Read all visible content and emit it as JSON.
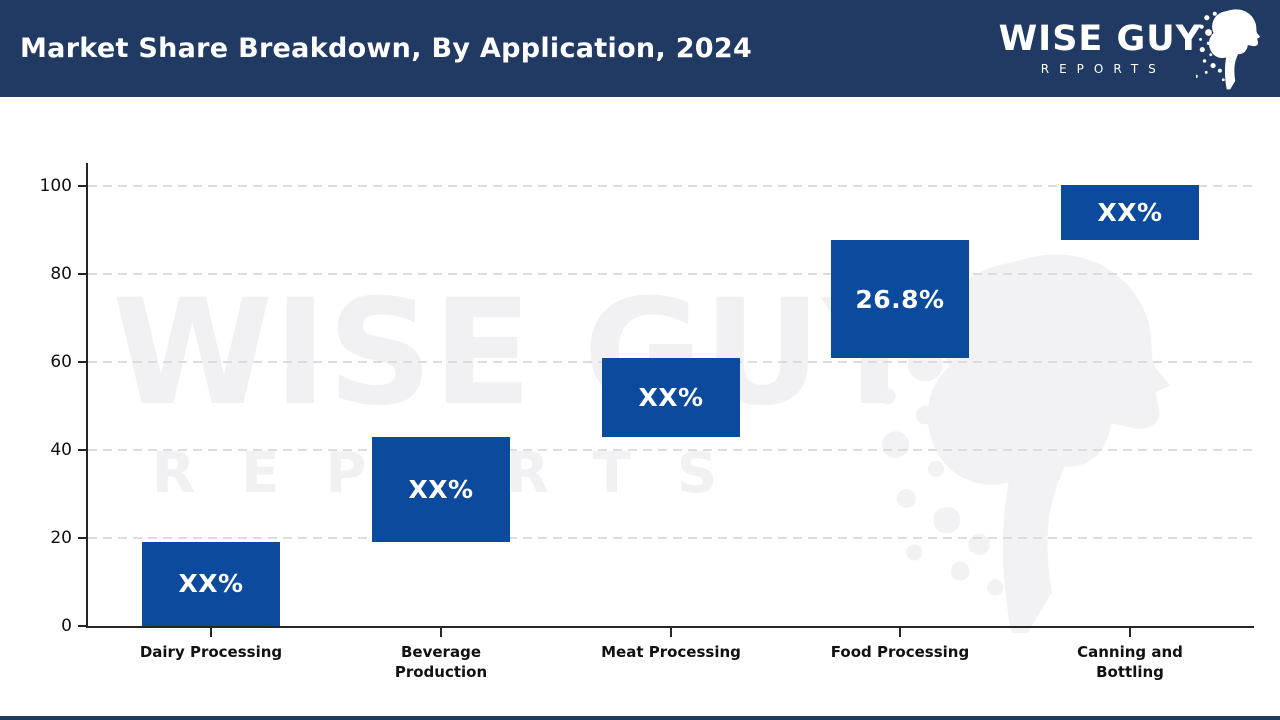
{
  "header": {
    "title": "Market Share Breakdown, By Application, 2024",
    "brand": {
      "line1": "WISE GUY",
      "line2": "REPORTS"
    }
  },
  "watermark": {
    "line1": "WISE GUY",
    "line2": "REPORTS"
  },
  "colors": {
    "header_bg": "#203a64",
    "footer_bg": "#203a64",
    "bar": "#0c4a9e",
    "bar_label": "#ffffff",
    "axis": "#262626",
    "grid": "#dcdcdc",
    "watermark": "#f1f1f3"
  },
  "chart_data": {
    "type": "bar",
    "subtype": "floating-waterfall",
    "title": "Market Share Breakdown, By Application, 2024",
    "categories": [
      "Dairy Processing",
      "Beverage Production",
      "Meat Processing",
      "Food Processing",
      "Canning and Bottling"
    ],
    "series": [
      {
        "name": "Market Share (%)",
        "segments": [
          {
            "category": "Dairy Processing",
            "lines": [
              "Dairy Processing"
            ],
            "start": 0,
            "end": 19.1,
            "value": 19.1,
            "label": "XX%"
          },
          {
            "category": "Beverage Production",
            "lines": [
              "Beverage",
              "Production"
            ],
            "start": 19.1,
            "end": 43.0,
            "value": 23.9,
            "label": "XX%"
          },
          {
            "category": "Meat Processing",
            "lines": [
              "Meat Processing"
            ],
            "start": 43.0,
            "end": 60.9,
            "value": 17.9,
            "label": "XX%"
          },
          {
            "category": "Food Processing",
            "lines": [
              "Food Processing"
            ],
            "start": 60.9,
            "end": 87.7,
            "value": 26.8,
            "label": "26.8%"
          },
          {
            "category": "Canning and Bottling",
            "lines": [
              "Canning and",
              "Bottling"
            ],
            "start": 87.7,
            "end": 100.2,
            "value": 12.5,
            "label": "XX%"
          }
        ]
      }
    ],
    "xlabel": "",
    "ylabel": "",
    "yticks": [
      0,
      20,
      40,
      60,
      80,
      100
    ],
    "ylim": [
      0,
      105
    ],
    "grid": "horizontal-dashed",
    "legend": "none",
    "bar_color": "#0c4a9e"
  }
}
